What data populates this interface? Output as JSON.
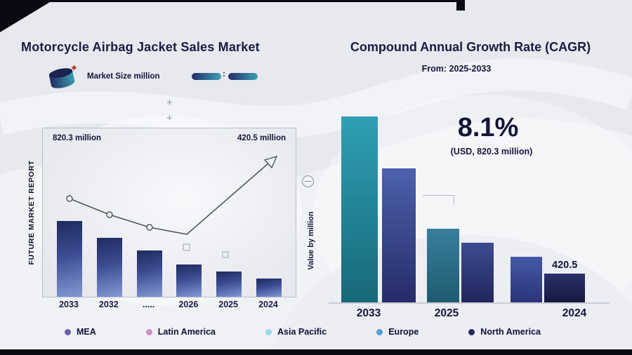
{
  "page": {
    "background_color": "#e7e9ee",
    "frame_color": "#0a0a12",
    "accent_navy": "#232c66",
    "accent_teal": "#3b9fb2"
  },
  "decor": {
    "plus": "+",
    "colon": ":"
  },
  "chart_data": [
    {
      "type": "bar",
      "title": "Motorcycle Airbag Jacket Sales Market",
      "legend_label": "Market Size million",
      "annotation_left": "820.3 million",
      "annotation_right": "420.5 million",
      "ylabel": "FUTURE MARKET REPORT",
      "categories": [
        "2033",
        "2032",
        ".....",
        "2026",
        "2025",
        "2024"
      ],
      "values": [
        108,
        84,
        66,
        46,
        36,
        26
      ],
      "value_note": "stylized bar heights; series spans 820.3 million (2033 side) down to 420.5 million (2024 side)",
      "trend": "marker line declines across bars then arrow rises sharply to upper right",
      "bar_gradient": [
        "#1f2a5e",
        "#8298d4"
      ]
    },
    {
      "type": "bar",
      "title": "Compound Annual Growth Rate (CAGR)",
      "subtitle": "From: 2025-2033",
      "cagr_value": "8.1%",
      "cagr_detail": "(USD, 820.3 million)",
      "ylabel": "Value by million",
      "annotation_2024": "420.5",
      "categories": [
        "2033",
        "2025",
        "2024"
      ],
      "series": [
        {
          "name": "series-1",
          "values": [
            266,
            106,
            66
          ],
          "colors": [
            [
              "#2fa0b4",
              "#186879"
            ],
            [
              "#377f9c",
              "#1f5a70"
            ],
            [
              "#4658a6",
              "#2a3478"
            ]
          ]
        },
        {
          "name": "series-2",
          "values": [
            192,
            86,
            42
          ],
          "colors": [
            [
              "#4d61ad",
              "#252c66"
            ],
            [
              "#3d4b92",
              "#20265c"
            ],
            [
              "#2b3168",
              "#141940"
            ]
          ]
        }
      ],
      "value_note": "stylized bar heights, not to scale"
    }
  ],
  "region_legend": [
    {
      "label": "MEA",
      "color": "#6d5fa8"
    },
    {
      "label": "Latin America",
      "color": "#d18fc4"
    },
    {
      "label": "Asia Pacific",
      "color": "#9ed9ec"
    },
    {
      "label": "Europe",
      "color": "#4e9fd4"
    },
    {
      "label": "North America",
      "color": "#242a63"
    }
  ]
}
